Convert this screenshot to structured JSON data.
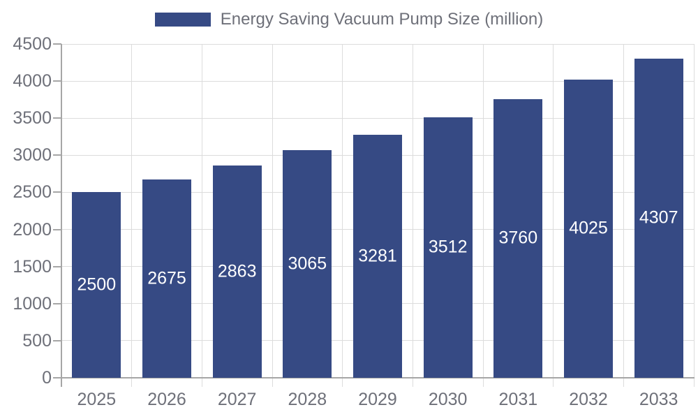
{
  "legend": {
    "label": "Energy Saving Vacuum Pump Size (million)"
  },
  "chart_data": {
    "type": "bar",
    "title": "",
    "categories": [
      "2025",
      "2026",
      "2027",
      "2028",
      "2029",
      "2030",
      "2031",
      "2032",
      "2033"
    ],
    "series": [
      {
        "name": "Energy Saving Vacuum Pump Size (million)",
        "values": [
          2500,
          2675,
          2863,
          3065,
          3281,
          3512,
          3760,
          4025,
          4307
        ]
      }
    ],
    "bar_labels": [
      "2500",
      "2675",
      "2863",
      "3065",
      "3281",
      "3512",
      "3760",
      "4025",
      "4307"
    ],
    "xlabel": "",
    "ylabel": "",
    "ylim": [
      0,
      4500
    ],
    "ytick_interval": 500,
    "ytick_labels": [
      "0",
      "500",
      "1000",
      "1500",
      "2000",
      "2500",
      "3000",
      "3500",
      "4000",
      "4500"
    ],
    "grid": true,
    "legend_position": "top",
    "bar_label_position": "inside-center"
  },
  "colors": {
    "bar": "#364a84",
    "bar_label": "#ffffff",
    "axis_line": "#a6a6a6",
    "grid_line": "#dcdcdc",
    "tick_label": "#6e7079",
    "legend_text": "#6e7079",
    "background": "#ffffff"
  }
}
